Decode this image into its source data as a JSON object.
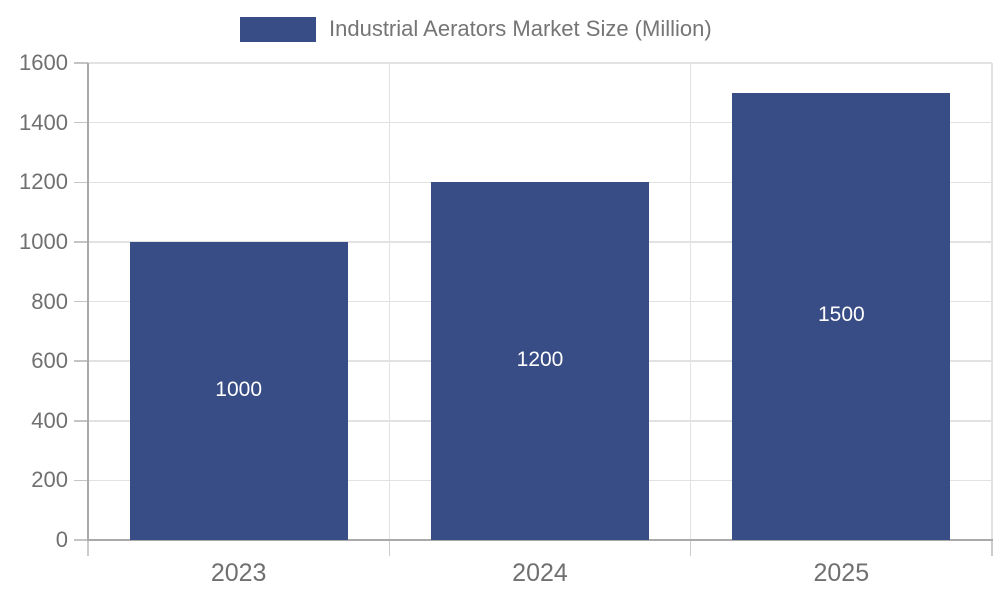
{
  "legend": {
    "label": "Industrial Aerators Market Size (Million)"
  },
  "chart_data": {
    "type": "bar",
    "title": "Industrial Aerators Market Size (Million)",
    "series_name": "Industrial Aerators Market Size (Million)",
    "categories": [
      "2023",
      "2024",
      "2025"
    ],
    "values": [
      1000,
      1200,
      1500
    ],
    "value_labels": [
      "1000",
      "1200",
      "1500"
    ],
    "yticks": [
      0,
      200,
      400,
      600,
      800,
      1000,
      1200,
      1400,
      1600
    ],
    "ylim": [
      0,
      1600
    ],
    "xlabel": "",
    "ylabel": "",
    "grid": true,
    "legend_position": "top",
    "value_label_position": "inside-center",
    "bar_color": "#384c85",
    "value_label_color": "#ffffff",
    "axis_text_color": "#707070",
    "legend_text_color": "#757575",
    "gridline_color": "#e2e2e2",
    "axis_line_color": "#a9a9a9"
  }
}
